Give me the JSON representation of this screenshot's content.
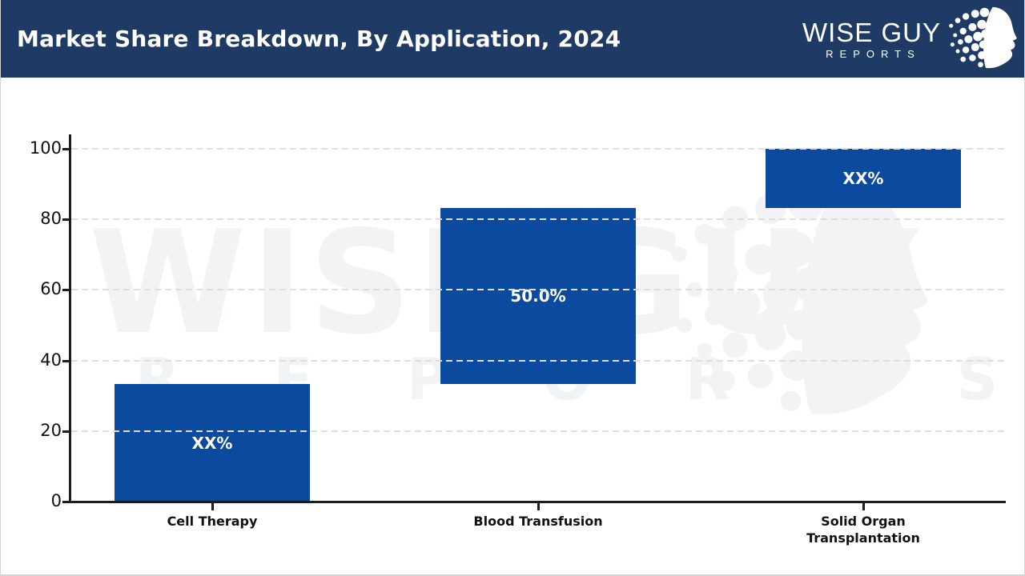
{
  "header": {
    "title": "Market Share Breakdown, By Application, 2024",
    "logo": {
      "line1": "WISE GUY",
      "line2": "REPORTS"
    }
  },
  "watermark": {
    "line1": "WISE GUY",
    "line2": "R E P O R T S"
  },
  "colors": {
    "header_bg": "#203a66",
    "bar": "#0b4a9e",
    "axis": "#1c1c1c",
    "gridline": "#dedede",
    "watermark": "#f2f3f5",
    "bar_label": "#ffffff",
    "tick_label": "#111111"
  },
  "chart_data": {
    "type": "bar",
    "subtype": "floating-stacked-percent",
    "title": "Market Share Breakdown, By Application, 2024",
    "categories": [
      "Cell Therapy",
      "Blood Transfusion",
      "Solid Organ Transplantation"
    ],
    "bars": [
      {
        "category": "Cell Therapy",
        "start": 0,
        "end": 33.3,
        "label": "XX%"
      },
      {
        "category": "Blood Transfusion",
        "start": 33.3,
        "end": 83.3,
        "label": "50.0%"
      },
      {
        "category": "Solid Organ Transplantation",
        "start": 83.3,
        "end": 100,
        "label": "XX%"
      }
    ],
    "y_ticks": [
      0,
      20,
      40,
      60,
      80,
      100
    ],
    "ylim": [
      0,
      104
    ],
    "xlabel": "",
    "ylabel": "",
    "grid": "horizontal-dashed",
    "legend": "none"
  }
}
